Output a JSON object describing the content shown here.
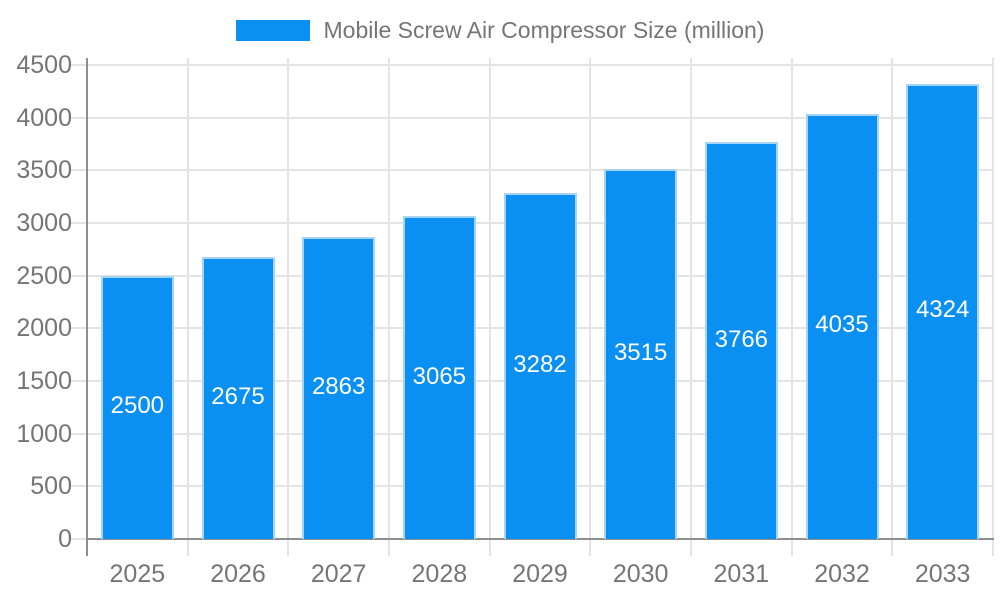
{
  "chart_data": {
    "type": "bar",
    "title": "Mobile Screw Air Compressor Size (million)",
    "series_name": "Mobile Screw Air Compressor Size (million)",
    "categories": [
      "2025",
      "2026",
      "2027",
      "2028",
      "2029",
      "2030",
      "2031",
      "2032",
      "2033"
    ],
    "values": [
      2500,
      2675,
      2863,
      3065,
      3282,
      3515,
      3766,
      4035,
      4324
    ],
    "value_labels_position": "inside-center",
    "xlabel": "",
    "ylabel": "",
    "ylim": [
      0,
      4500
    ],
    "ytick_step": 500,
    "yticks": [
      0,
      500,
      1000,
      1500,
      2000,
      2500,
      3000,
      3500,
      4000,
      4500
    ],
    "grid": "both",
    "legend_position": "top-center",
    "colors": {
      "bar": "#0a8ff2",
      "bar_border": "#a6d4f7",
      "grid": "#e4e4e4",
      "axis": "#8f8f8f",
      "axis_label_text": "#757575",
      "value_label_text": "#ffffff",
      "legend_text": "#757575"
    }
  }
}
